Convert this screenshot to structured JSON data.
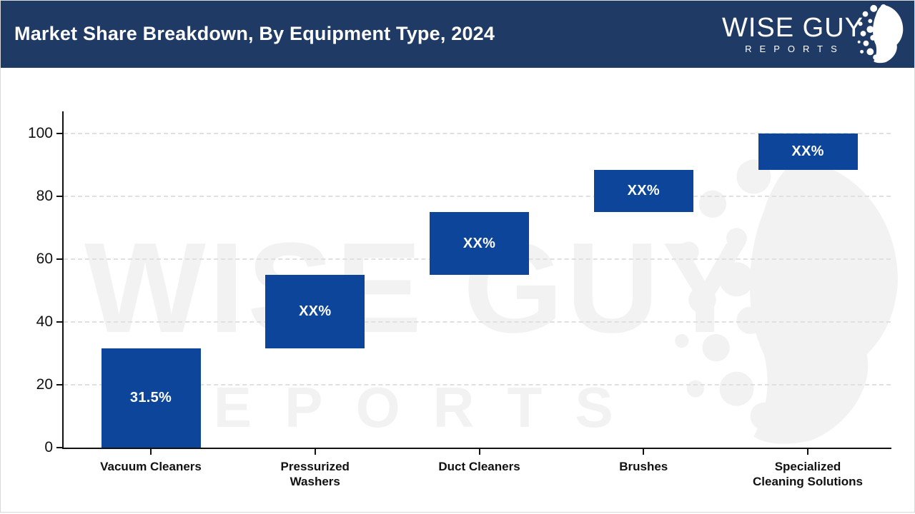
{
  "header": {
    "title": "Market Share Breakdown, By Equipment Type, 2024",
    "logo_line1": "WISE GUY",
    "logo_line2": "REPORTS"
  },
  "watermark": {
    "line1": "WISE GUY",
    "line2": "REPORTS"
  },
  "colors": {
    "header_bg": "#203a66",
    "bar": "#0c4599",
    "bar_label_text": "#ffffff",
    "axis": "#111111",
    "gridline": "#e0e0e0",
    "watermark": "#f2f2f2",
    "border": "#d9d9d9"
  },
  "chart_data": {
    "type": "bar",
    "subtype": "waterfall",
    "title": "Market Share Breakdown, By Equipment Type, 2024",
    "categories": [
      "Vacuum Cleaners",
      "Pressurized Washers",
      "Duct Cleaners",
      "Brushes",
      "Specialized Cleaning Solutions"
    ],
    "category_label_lines": [
      [
        "Vacuum Cleaners"
      ],
      [
        "Pressurized",
        "Washers"
      ],
      [
        "Duct Cleaners"
      ],
      [
        "Brushes"
      ],
      [
        "Specialized",
        "Cleaning Solutions"
      ]
    ],
    "segments": [
      {
        "category": "Vacuum Cleaners",
        "start": 0,
        "end": 31.5,
        "label": "31.5%"
      },
      {
        "category": "Pressurized Washers",
        "start": 31.5,
        "end": 55,
        "label": "XX%"
      },
      {
        "category": "Duct Cleaners",
        "start": 55,
        "end": 75,
        "label": "XX%"
      },
      {
        "category": "Brushes",
        "start": 75,
        "end": 88.5,
        "label": "XX%"
      },
      {
        "category": "Specialized Cleaning Solutions",
        "start": 88.5,
        "end": 100,
        "label": "XX%"
      }
    ],
    "xlabel": "",
    "ylabel": "",
    "yticks": [
      0,
      20,
      40,
      60,
      80,
      100
    ],
    "ylim": [
      0,
      107
    ],
    "grid": "horizontal-dashed",
    "legend": "none",
    "bar_color": "#0c4599"
  }
}
